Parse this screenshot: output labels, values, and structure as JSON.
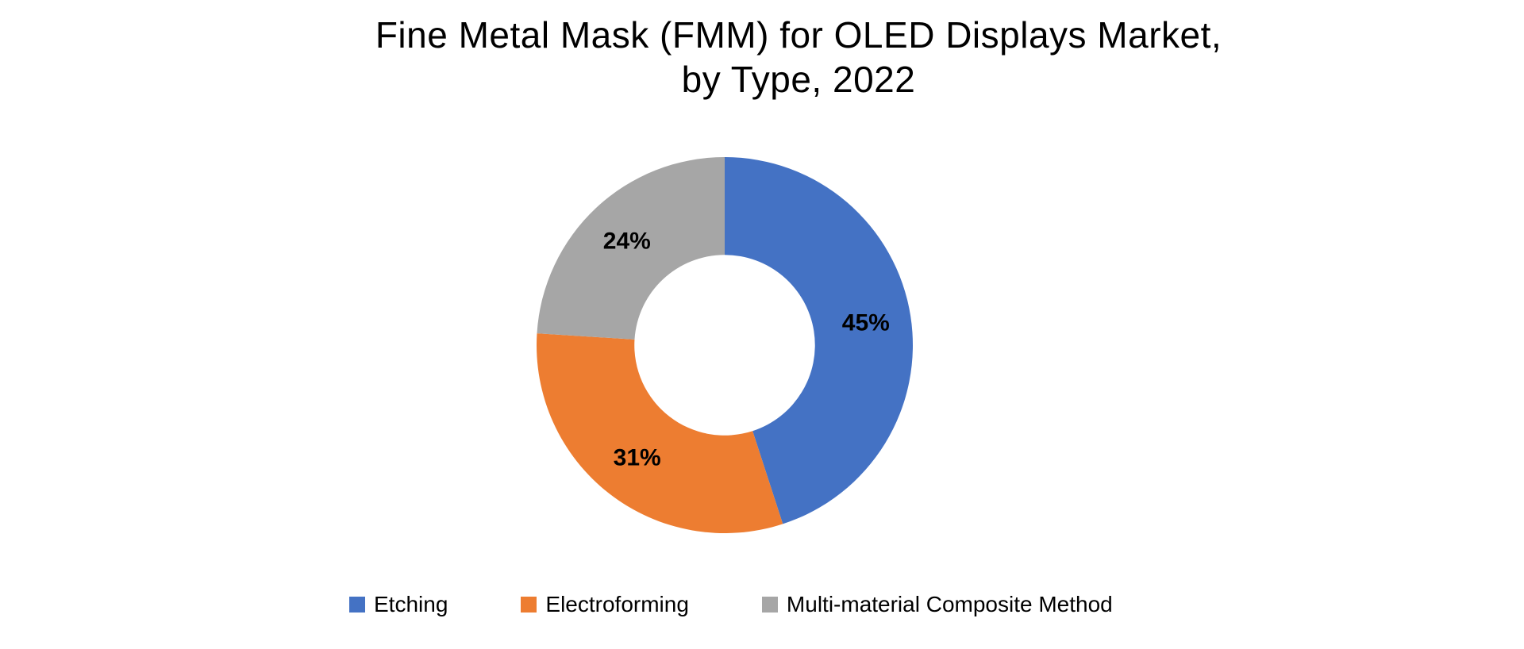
{
  "title": {
    "line1": "Fine Metal Mask (FMM) for OLED Displays Market,",
    "line2": "by Type, 2022"
  },
  "chart_data": {
    "type": "pie",
    "subtype": "donut",
    "title": "Fine Metal Mask (FMM) for OLED Displays Market, by Type, 2022",
    "categories": [
      "Etching",
      "Electroforming",
      "Multi-material Composite Method"
    ],
    "values": [
      45,
      31,
      24
    ],
    "unit": "%",
    "data_labels": [
      "45%",
      "31%",
      "24%"
    ],
    "colors": [
      "#4472C4",
      "#ED7D31",
      "#A6A6A6"
    ],
    "start_angle_deg": 0,
    "direction": "clockwise",
    "hole_ratio": 0.48,
    "legend_position": "bottom",
    "background": "#FFFFFF",
    "label_color": "#000000"
  },
  "legend": {
    "items": [
      {
        "label": "Etching",
        "color": "#4472C4"
      },
      {
        "label": "Electroforming",
        "color": "#ED7D31"
      },
      {
        "label": "Multi-material Composite Method",
        "color": "#A6A6A6"
      }
    ]
  }
}
